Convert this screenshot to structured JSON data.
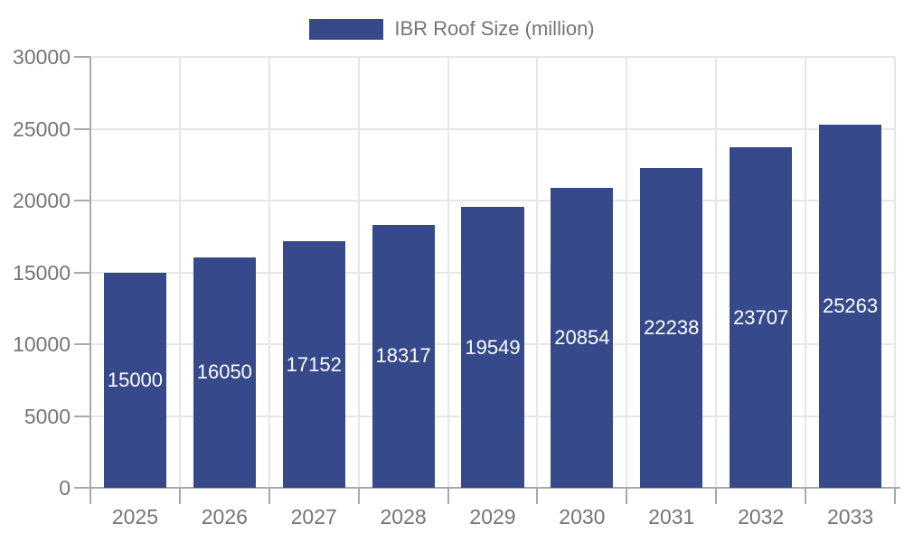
{
  "chart_data": {
    "type": "bar",
    "title": "IBR Roof Size (million)",
    "legend": "IBR Roof Size (million)",
    "legend_position": "top-center",
    "categories": [
      "2025",
      "2026",
      "2027",
      "2028",
      "2029",
      "2030",
      "2031",
      "2032",
      "2033"
    ],
    "values": [
      15000,
      16050,
      17152,
      18317,
      19549,
      20854,
      22238,
      23707,
      25263
    ],
    "xlabel": "",
    "ylabel": "",
    "ylim": [
      0,
      30000
    ],
    "yticks": [
      0,
      5000,
      10000,
      15000,
      20000,
      25000,
      30000
    ],
    "grid": true,
    "colors": {
      "bar": "#36498A",
      "grid": "#E6E6E6",
      "axis": "#A9A9A9",
      "tick_label": "#757575",
      "bar_label": "#FFFFFF",
      "background": "#FFFFFF"
    }
  }
}
